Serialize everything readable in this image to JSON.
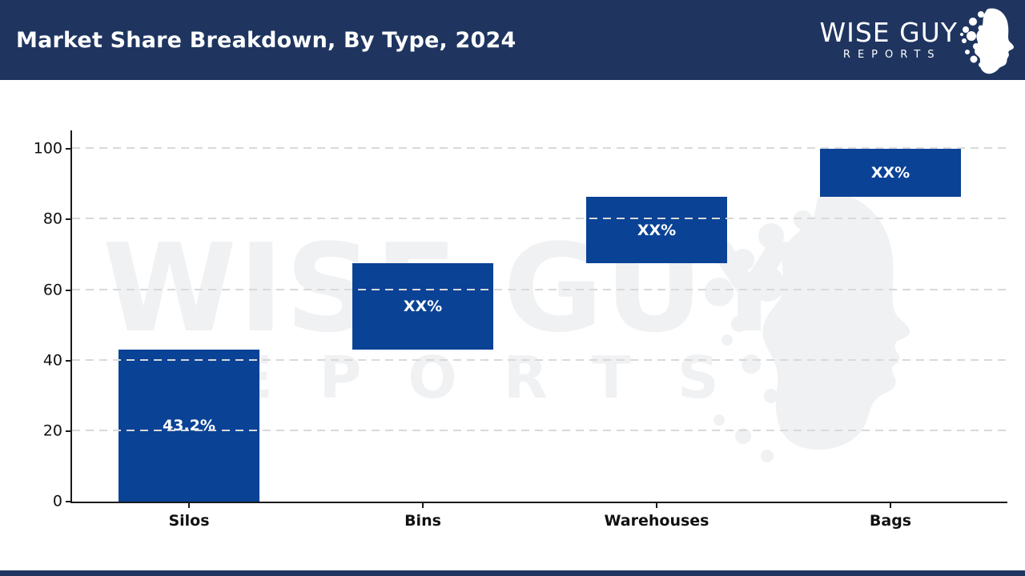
{
  "header": {
    "title": "Market Share Breakdown, By Type, 2024",
    "logo_line1": "WISE GUY",
    "logo_line2": "REPORTS",
    "bg_color": "#1f3560"
  },
  "watermark": {
    "line1": "WISE GUY",
    "line2": "REPORTS",
    "color": "#f0f1f3"
  },
  "chart_data": {
    "type": "bar",
    "subtype": "waterfall",
    "title": "Market Share Breakdown, By Type, 2024",
    "xlabel": "",
    "ylabel": "",
    "categories": [
      "Silos",
      "Bins",
      "Warehouses",
      "Bags"
    ],
    "series": [
      {
        "name": "Market Share (%)",
        "segments": [
          {
            "category": "Silos",
            "start": 0,
            "end": 43.2,
            "label": "43.2%"
          },
          {
            "category": "Bins",
            "start": 43.2,
            "end": 67.6,
            "label": "XX%"
          },
          {
            "category": "Warehouses",
            "start": 67.6,
            "end": 86.4,
            "label": "XX%"
          },
          {
            "category": "Bags",
            "start": 86.4,
            "end": 100,
            "label": "XX%"
          }
        ]
      }
    ],
    "yticks": [
      0,
      20,
      40,
      60,
      80,
      100
    ],
    "ylim": [
      0,
      105.3
    ],
    "grid": "horizontal-dashed",
    "legend": "none",
    "bar_color": "#0a4296",
    "bar_label_color": "#ffffff",
    "grid_color": "#d9d9d9",
    "axis_color": "#1a1a1a",
    "bar_width_pct": 15.15
  }
}
